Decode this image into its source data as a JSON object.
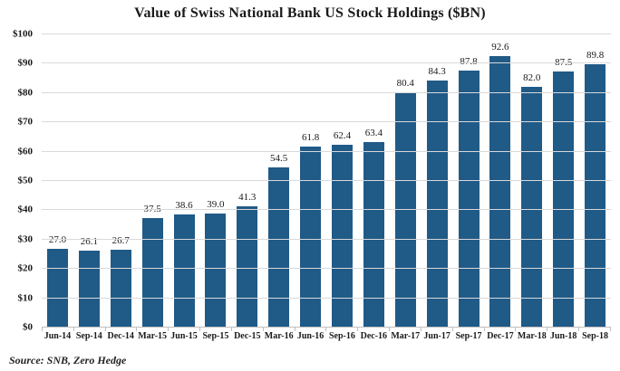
{
  "source": "Source: SNB, Zero Hedge",
  "colors": {
    "bar": "#205a87",
    "grid": "#d9d9d9",
    "axis": "#bfbfbf",
    "text": "#1a1a1a"
  },
  "chart_data": {
    "type": "bar",
    "title": "Value of Swiss National Bank US Stock Holdings ($BN)",
    "categories": [
      "Jun-14",
      "Sep-14",
      "Dec-14",
      "Mar-15",
      "Jun-15",
      "Sep-15",
      "Dec-15",
      "Mar-16",
      "Jun-16",
      "Sep-16",
      "Dec-16",
      "Mar-17",
      "Jun-17",
      "Sep-17",
      "Dec-17",
      "Mar-18",
      "Jun-18",
      "Sep-18"
    ],
    "values": [
      27.0,
      26.1,
      26.7,
      37.5,
      38.6,
      39.0,
      41.3,
      54.5,
      61.8,
      62.4,
      63.4,
      80.4,
      84.3,
      87.8,
      92.6,
      82.0,
      87.5,
      89.8
    ],
    "value_label_decimals": 1,
    "xlabel": "",
    "ylabel": "",
    "ylim": [
      0,
      100
    ],
    "ytick_step": 10,
    "ytick_prefix": "$",
    "grid": true,
    "legend": false
  }
}
